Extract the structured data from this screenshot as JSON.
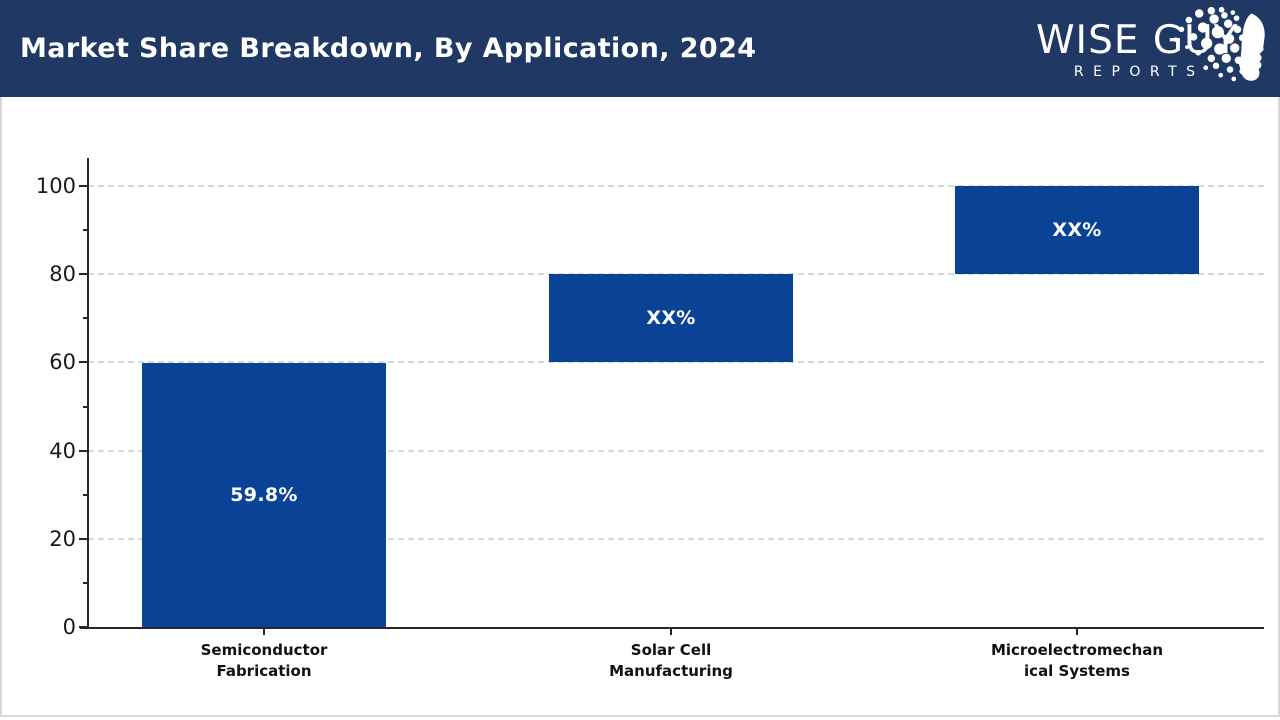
{
  "header": {
    "title": "Market Share Breakdown, By Application, 2024",
    "bg_color": "#1f3864",
    "logo": {
      "line1": "WISE GUY",
      "line2": "REPORTS"
    }
  },
  "watermark": {
    "line1": "WISE GUY",
    "line2": "R E P O R T S"
  },
  "chart_data": {
    "type": "bar",
    "subtype": "waterfall-breakdown",
    "title": "Market Share Breakdown, By Application, 2024",
    "categories": [
      "Semiconductor\nFabrication",
      "Solar Cell\nManufacturing",
      "Microelectromechan\nical Systems"
    ],
    "segments": [
      {
        "category": "Semiconductor Fabrication",
        "start": 0,
        "end": 59.8,
        "label": "59.8%"
      },
      {
        "category": "Solar Cell Manufacturing",
        "start": 60,
        "end": 80,
        "label": "XX%"
      },
      {
        "category": "Microelectromechanical Systems",
        "start": 80,
        "end": 100,
        "label": "XX%"
      }
    ],
    "xlabel": "",
    "ylabel": "",
    "ylim": [
      0,
      100
    ],
    "yticks": [
      0,
      20,
      40,
      60,
      80,
      100
    ],
    "minor_yticks": [
      10,
      30,
      50,
      70,
      90
    ],
    "grid": true,
    "legend": "none",
    "bar_color": "#0a4296",
    "bar_label_color": "#ffffff"
  }
}
